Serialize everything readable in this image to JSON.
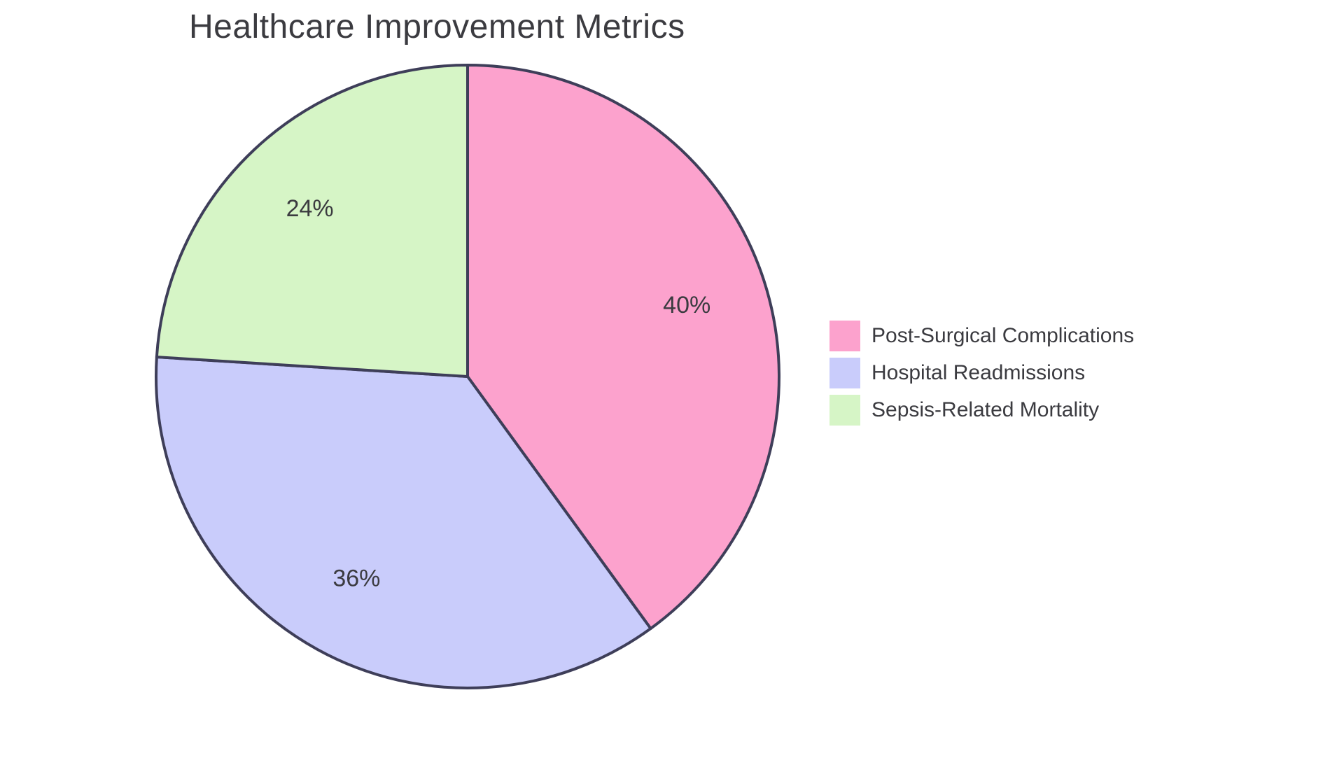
{
  "title": "Healthcare Improvement Metrics",
  "colors": {
    "background": "#FFFFFF",
    "text": "#3B3B40",
    "pie_border": "#3E3E59"
  },
  "chart_data": {
    "type": "pie",
    "title": "Healthcare Improvement Metrics",
    "categories": [
      "Post-Surgical Complications",
      "Hospital Readmissions",
      "Sepsis-Related Mortality"
    ],
    "values": [
      40,
      36,
      24
    ],
    "slice_labels": [
      "40%",
      "36%",
      "24%"
    ],
    "slice_colors": [
      "#FCA2CD",
      "#C9CCFB",
      "#D6F5C6"
    ],
    "unit": "percent",
    "start_angle": "12-oclock",
    "direction": "clockwise",
    "label_position": "inside",
    "legend_position": "right",
    "grid": false
  },
  "legend": {
    "items": [
      {
        "label": "Post-Surgical Complications",
        "color": "#FCA2CD"
      },
      {
        "label": "Hospital Readmissions",
        "color": "#C9CCFB"
      },
      {
        "label": "Sepsis-Related Mortality",
        "color": "#D6F5C6"
      }
    ]
  }
}
